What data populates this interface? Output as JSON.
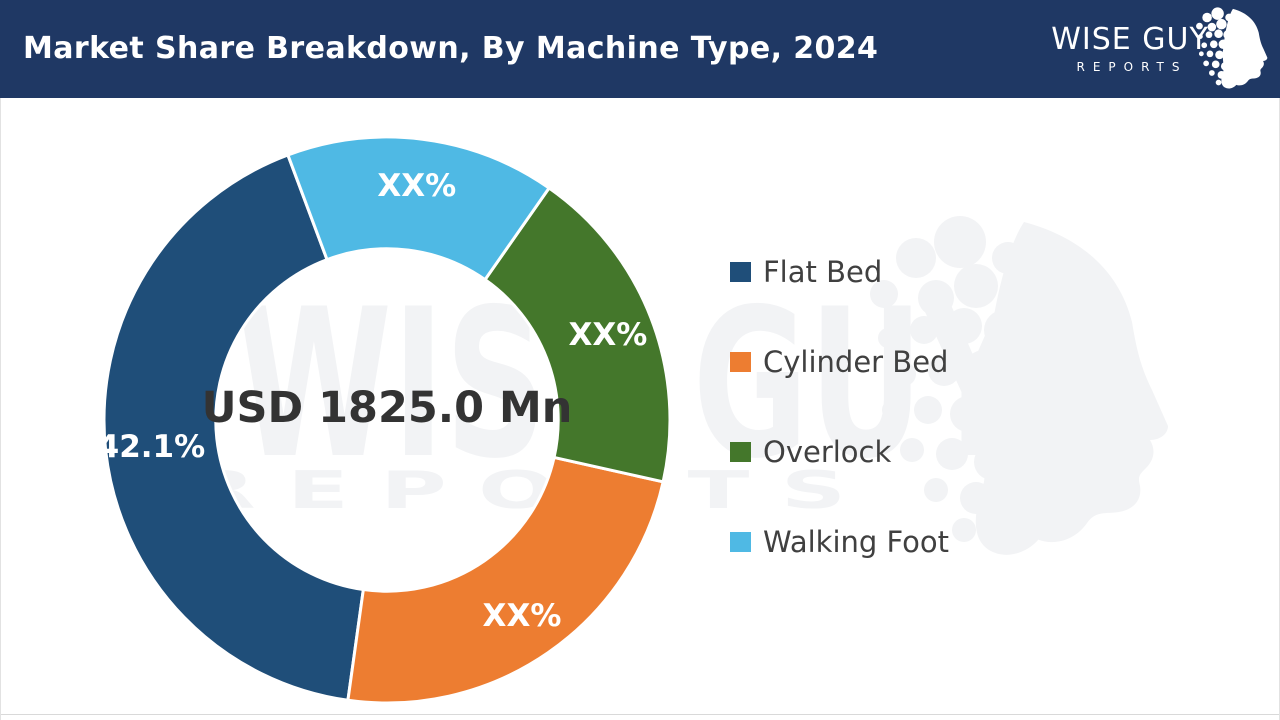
{
  "header": {
    "title": "Market Share Breakdown, By Machine Type, 2024",
    "bg_color": "#1f3864",
    "logo": {
      "line1": "WISE GUY",
      "line2": "REPORTS"
    }
  },
  "watermark": {
    "line1": "WISE GUY",
    "line2": "R E P O R T S"
  },
  "chart_data": {
    "type": "pie",
    "subtype": "donut",
    "title": "Market Share Breakdown, By Machine Type, 2024",
    "center_label": "USD 1825.0 Mn",
    "start_angle_deg": 110.5,
    "direction": "counterclockwise",
    "inner_radius_ratio": 0.605,
    "slice_label_color": "#ffffff",
    "legend_position": "right",
    "segments": [
      {
        "name": "Flat Bed",
        "value": 42.1,
        "slice_label": "42.1%",
        "color": "#1f4e79"
      },
      {
        "name": "Cylinder Bed",
        "value": 23.7,
        "slice_label": "XX%",
        "color": "#ed7d31"
      },
      {
        "name": "Overlock",
        "value": 18.8,
        "slice_label": "XX%",
        "color": "#44772b"
      },
      {
        "name": "Walking Foot",
        "value": 15.4,
        "slice_label": "XX%",
        "color": "#4fb9e4"
      }
    ]
  }
}
